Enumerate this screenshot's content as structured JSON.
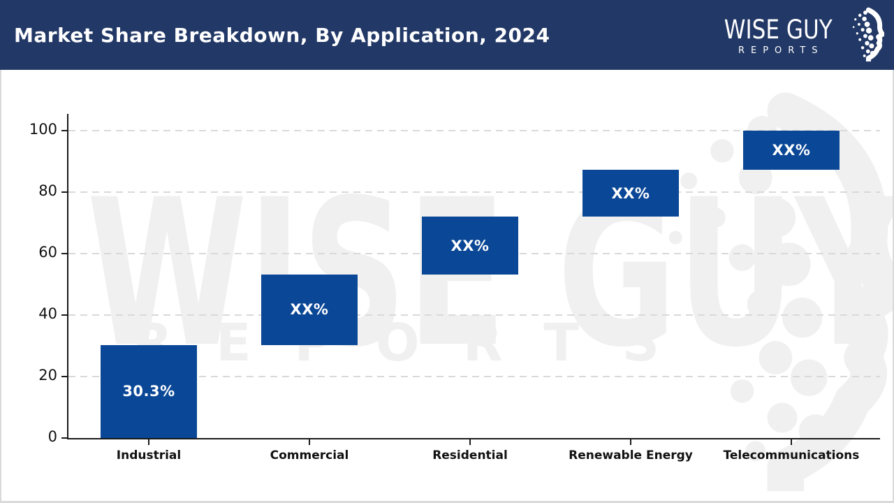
{
  "header": {
    "title": "Market Share Breakdown, By Application, 2024",
    "logo": {
      "brand_top": "WISE GUY",
      "brand_bottom": "REPORTS"
    }
  },
  "watermark": {
    "line1": "WISE GUY",
    "line2": "REPORTS"
  },
  "chart_data": {
    "type": "bar",
    "subtype": "waterfall",
    "title": "Market Share Breakdown, By Application, 2024",
    "xlabel": "",
    "ylabel": "",
    "categories": [
      "Industrial",
      "Commercial",
      "Residential",
      "Renewable Energy",
      "Telecommunications"
    ],
    "segments": [
      {
        "category": "Industrial",
        "start": 0,
        "end": 30.3,
        "label": "30.3%"
      },
      {
        "category": "Commercial",
        "start": 30.3,
        "end": 53.2,
        "label": "XX%"
      },
      {
        "category": "Residential",
        "start": 53.2,
        "end": 72.0,
        "label": "XX%"
      },
      {
        "category": "Renewable Energy",
        "start": 72.0,
        "end": 87.2,
        "label": "XX%"
      },
      {
        "category": "Telecommunications",
        "start": 87.2,
        "end": 100.0,
        "label": "XX%"
      }
    ],
    "yticks": [
      0,
      20,
      40,
      60,
      80,
      100
    ],
    "ylim": [
      0,
      104
    ],
    "grid": "horizontal-dashed",
    "legend": "none",
    "bar_color": "#0a4796",
    "bar_label_color": "#ffffff"
  },
  "colors": {
    "header_bg": "#223866",
    "header_text": "#ffffff",
    "bar": "#0a4796",
    "bar_label": "#ffffff",
    "grid": "#d9d9d9",
    "axis": "#1a1a1a",
    "tick_label": "#111111",
    "watermark": "#f0f0f0",
    "page_border": "#d9d9d9"
  }
}
